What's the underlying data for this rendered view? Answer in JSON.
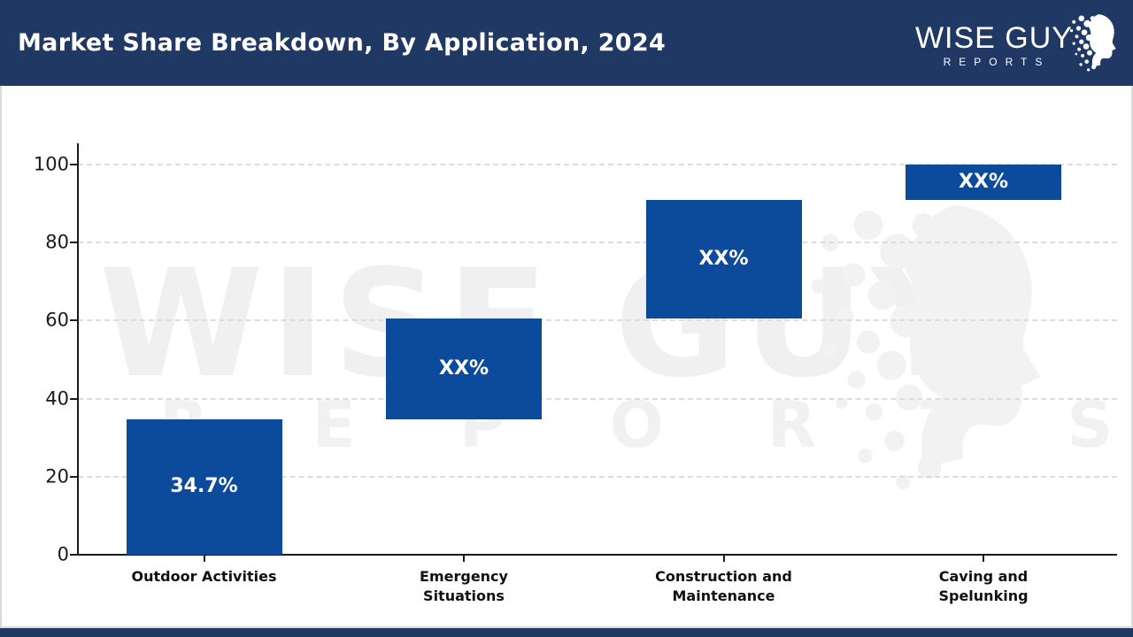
{
  "header": {
    "title": "Market Share Breakdown, By Application, 2024",
    "logo": {
      "name": "WISE GUY",
      "sub": "REPORTS"
    }
  },
  "watermark": {
    "line1": "WISE GUY",
    "line2": "R E P O R T S"
  },
  "chart_data": {
    "type": "bar",
    "variant": "waterfall",
    "title": "Market Share Breakdown, By Application, 2024",
    "categories": [
      "Outdoor Activities",
      "Emergency\nSituations",
      "Construction and\nMaintenance",
      "Caving and\nSpelunking"
    ],
    "segments": [
      {
        "category": "Outdoor Activities",
        "start": 0,
        "end": 34.7,
        "label": "34.7%"
      },
      {
        "category": "Emergency Situations",
        "start": 34.7,
        "end": 60.5,
        "label": "XX%"
      },
      {
        "category": "Construction and Maintenance",
        "start": 60.5,
        "end": 90.9,
        "label": "XX%"
      },
      {
        "category": "Caving and Spelunking",
        "start": 90.9,
        "end": 100,
        "label": "XX%"
      }
    ],
    "yticks": [
      0,
      20,
      40,
      60,
      80,
      100
    ],
    "ylim": [
      0,
      105
    ],
    "grid": "horizontal-dashed",
    "legend": "none",
    "colors": {
      "bar": "#0c4a9c",
      "bar_label": "#ffffff",
      "axis": "#1a1a1a",
      "grid": "#dcdcdc",
      "header_bg": "#1f3864",
      "footer_bg": "#1f3864",
      "watermark": "#f0f0f0"
    }
  }
}
